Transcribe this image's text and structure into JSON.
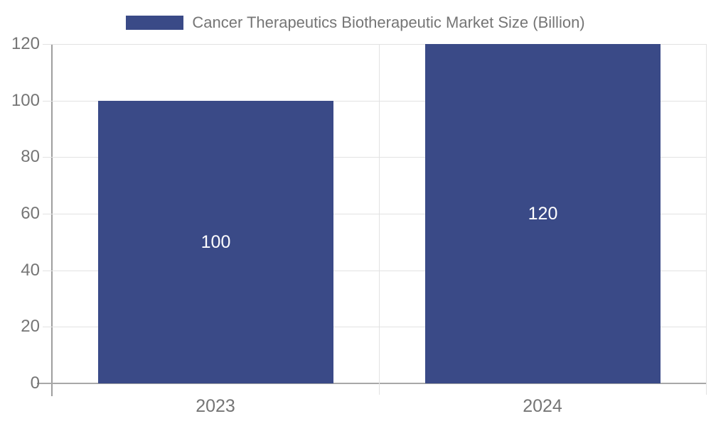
{
  "legend": {
    "label": "Cancer Therapeutics Biotherapeutic Market Size (Billion)"
  },
  "chart_data": {
    "type": "bar",
    "title": "Cancer Therapeutics Biotherapeutic Market Size (Billion)",
    "categories": [
      "2023",
      "2024"
    ],
    "values": [
      100,
      120
    ],
    "series": [
      {
        "name": "Cancer Therapeutics Biotherapeutic Market Size (Billion)",
        "values": [
          100,
          120
        ]
      }
    ],
    "value_labels": [
      "100",
      "120"
    ],
    "xlabel": "",
    "ylabel": "",
    "ylim": [
      0,
      120
    ],
    "yticks": [
      0,
      20,
      40,
      60,
      80,
      100,
      120
    ],
    "grid": true,
    "legend_position": "top-center",
    "colors": {
      "bar": "#3A4A87",
      "bar_label": "#FFFFFF",
      "axis": "#A0A0A0",
      "grid": "#E2E2E2",
      "text": "#757575",
      "background": "#FFFFFF"
    }
  }
}
